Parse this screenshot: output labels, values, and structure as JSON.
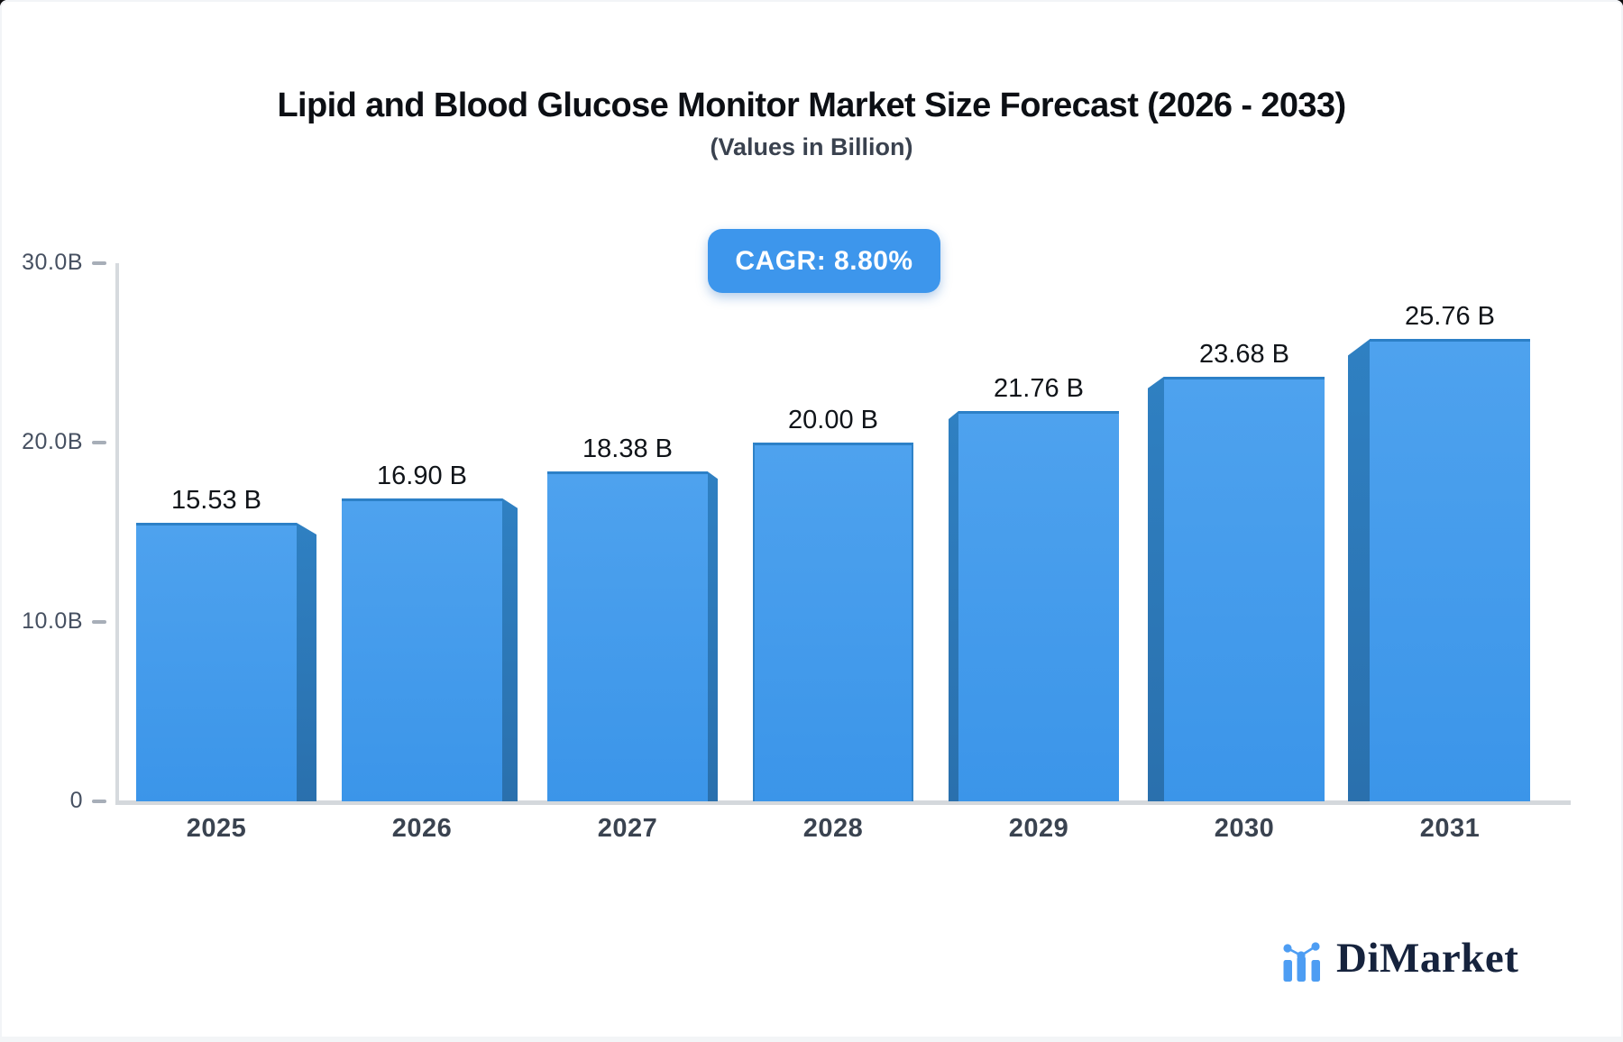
{
  "header": {
    "title": "Lipid and Blood Glucose Monitor Market Size Forecast (2026 - 2033)",
    "subtitle": "(Values in Billion)"
  },
  "cagr_badge": {
    "label": "CAGR: 8.80%",
    "color": "#3d96ec",
    "text_color": "#ffffff"
  },
  "chart_data": {
    "type": "bar",
    "title": "Lipid and Blood Glucose Monitor Market Size Forecast (2026 - 2033)",
    "subtitle": "(Values in Billion)",
    "categories": [
      "2025",
      "2026",
      "2027",
      "2028",
      "2029",
      "2030",
      "2031"
    ],
    "values": [
      15.53,
      16.9,
      18.38,
      20.0,
      21.76,
      23.68,
      25.76
    ],
    "value_labels": [
      "15.53 B",
      "16.90 B",
      "18.38 B",
      "20.00 B",
      "21.76 B",
      "23.68 B",
      "25.76 B"
    ],
    "unit": "Billion",
    "xlabel": "",
    "ylabel": "",
    "ylim": [
      0,
      30
    ],
    "yticks": [
      {
        "value": 30,
        "label": "30.0B"
      },
      {
        "value": 20,
        "label": "20.0B"
      },
      {
        "value": 10,
        "label": "10.0B"
      },
      {
        "value": 0,
        "label": "0"
      }
    ],
    "grid": false,
    "legend": false,
    "bar_color": "#3f9aeb",
    "bar_side_color": "#2d7bbc",
    "bar_edge_color": "#2c80c7"
  },
  "footer_logo": {
    "text": "DiMarket",
    "icon": "bar-chart-logo-icon",
    "icon_color": "#4d9df3",
    "text_color": "#16233d"
  }
}
